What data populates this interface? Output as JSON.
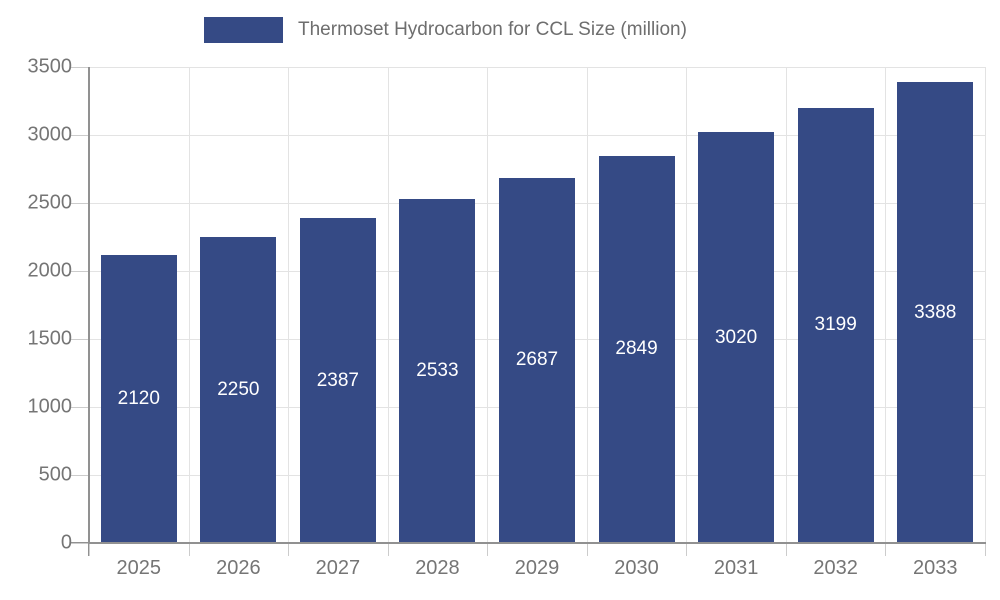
{
  "legend": {
    "label": "Thermoset Hydrocarbon for CCL Size (million)"
  },
  "chart_data": {
    "type": "bar",
    "title": "Thermoset Hydrocarbon for CCL Size (million)",
    "series_name": "Thermoset Hydrocarbon for CCL Size (million)",
    "categories": [
      "2025",
      "2026",
      "2027",
      "2028",
      "2029",
      "2030",
      "2031",
      "2032",
      "2033"
    ],
    "values": [
      2120,
      2250,
      2387,
      2533,
      2687,
      2849,
      3020,
      3199,
      3388
    ],
    "xlabel": "",
    "ylabel": "",
    "ylim": [
      0,
      3500
    ],
    "yticks": [
      0,
      500,
      1000,
      1500,
      2000,
      2500,
      3000,
      3500
    ],
    "grid": true,
    "legend_position": "top",
    "colors": {
      "bar_fill": "#354A85",
      "bar_value_label": "#ffffff",
      "axis_text": "#757575",
      "legend_text": "#6e6e6e",
      "gridline": "#e3e3e3",
      "tick_mark": "#cccccc",
      "axis_line": "#919191",
      "background": "#ffffff"
    }
  }
}
